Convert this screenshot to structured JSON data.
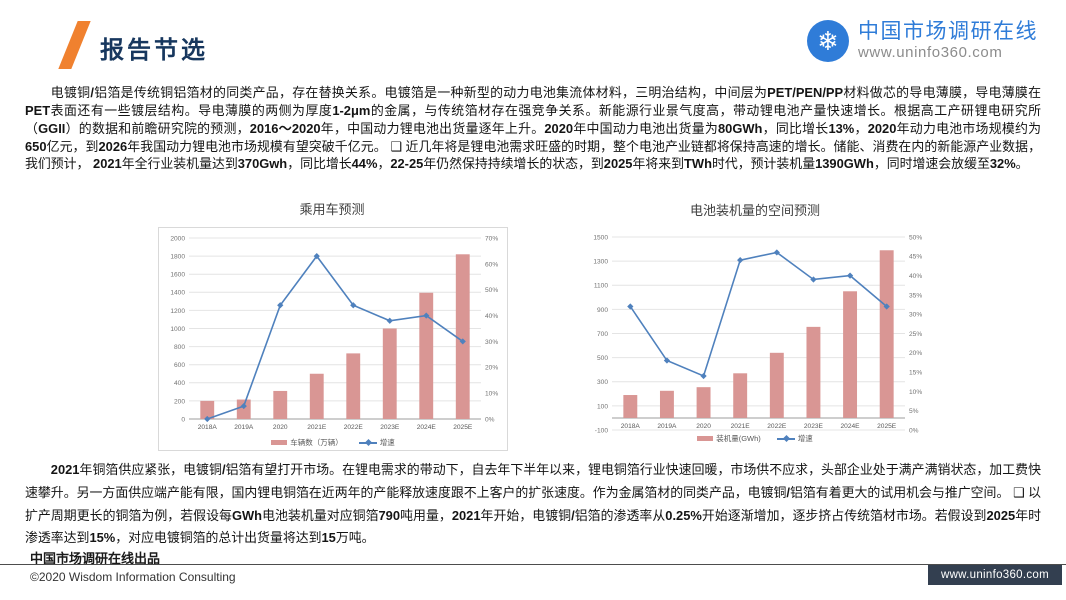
{
  "header": {
    "title": "报告节选",
    "logo": {
      "icon": "snowflake-icon",
      "glyph": "❄",
      "name": "中国市场调研在线",
      "url": "www.uninfo360.com"
    }
  },
  "colors": {
    "accent_orange": "#F0812F",
    "title_navy": "#17375E",
    "brand_blue": "#2F7CD8",
    "bar_pink": "#D99694",
    "line_blue": "#4F81BD",
    "footer_bar": "#333F50"
  },
  "paragraphs": [
    {
      "runs": [
        {
          "t": "电镀铜",
          "b": false
        },
        {
          "t": "/",
          "b": true
        },
        {
          "t": "铝箔是传统铜铝箔材的同类产品，存在替换关系。电镀箔是一种新型的动力电池集流体材料，三明治结构，中间层为",
          "b": false
        },
        {
          "t": "PET/PEN/PP",
          "b": true
        },
        {
          "t": "材料做芯的导电薄膜，导电薄膜在",
          "b": false
        },
        {
          "t": "PET",
          "b": true
        },
        {
          "t": "表面还有一些镀层结构。导电薄膜的两侧为厚度",
          "b": false
        },
        {
          "t": "1-2μm",
          "b": true
        },
        {
          "t": "的金属，与传统箔材存在强竞争关系。新能源行业景气度高，带动锂电池产量快速增长。根据高工产研锂电研究所（",
          "b": false
        },
        {
          "t": "GGII",
          "b": true
        },
        {
          "t": "）的数据和前瞻研究院的预测，",
          "b": false
        },
        {
          "t": "2016～2020",
          "b": true
        },
        {
          "t": "年，中国动力锂电池出货量逐年上升。",
          "b": false
        },
        {
          "t": "2020",
          "b": true
        },
        {
          "t": "年中国动力电池出货量为",
          "b": false
        },
        {
          "t": "80GWh",
          "b": true
        },
        {
          "t": "，同比增长",
          "b": false
        },
        {
          "t": "13%",
          "b": true
        },
        {
          "t": "，",
          "b": false
        },
        {
          "t": "2020",
          "b": true
        },
        {
          "t": "年动力电池市场规模约为",
          "b": false
        },
        {
          "t": "650",
          "b": true
        },
        {
          "t": "亿元，到",
          "b": false
        },
        {
          "t": "2026",
          "b": true
        },
        {
          "t": "年我国动力锂电池市场规模有望突破千亿元。 ❑ 近几年将是锂电池需求旺盛的时期，整个电池产业链都将保持高速的增长。储能、消费在内的新能源产业数据，我们预计， ",
          "b": false
        },
        {
          "t": "2021",
          "b": true
        },
        {
          "t": "年全行业装机量达到",
          "b": false
        },
        {
          "t": "370Gwh",
          "b": true
        },
        {
          "t": "，同比增长",
          "b": false
        },
        {
          "t": "44%",
          "b": true
        },
        {
          "t": "，",
          "b": false
        },
        {
          "t": "22-25",
          "b": true
        },
        {
          "t": "年仍然保持持续增长的状态，到",
          "b": false
        },
        {
          "t": "2025",
          "b": true
        },
        {
          "t": "年将来到",
          "b": false
        },
        {
          "t": "TWh",
          "b": true
        },
        {
          "t": "时代，预计装机量",
          "b": false
        },
        {
          "t": "1390GWh",
          "b": true
        },
        {
          "t": "，同时增速会放缓至",
          "b": false
        },
        {
          "t": "32%",
          "b": true
        },
        {
          "t": "。",
          "b": false
        }
      ]
    },
    {
      "runs": [
        {
          "t": "2021",
          "b": true
        },
        {
          "t": "年铜箔供应紧张，电镀铜",
          "b": false
        },
        {
          "t": "/",
          "b": true
        },
        {
          "t": "铝箔有望打开市场。在锂电需求的带动下，自去年下半年以来，锂电铜箔行业快速回暖，市场供不应求，头部企业处于满产满销状态，加工费快速攀升。另一方面供应端产能有限，国内锂电铜箔在近两年的产能释放速度跟不上客户的扩张速度。作为金属箔材的同类产品，电镀铜",
          "b": false
        },
        {
          "t": "/",
          "b": true
        },
        {
          "t": "铝箔有着更大的试用机会与推广空间。 ❑ 以扩产周期更长的铜箔为例，若假设每",
          "b": false
        },
        {
          "t": "GWh",
          "b": true
        },
        {
          "t": "电池装机量对应铜箔",
          "b": false
        },
        {
          "t": "790",
          "b": true
        },
        {
          "t": "吨用量，",
          "b": false
        },
        {
          "t": "2021",
          "b": true
        },
        {
          "t": "年开始，电镀铜",
          "b": false
        },
        {
          "t": "/",
          "b": true
        },
        {
          "t": "铝箔的渗透率从",
          "b": false
        },
        {
          "t": "0.25%",
          "b": true
        },
        {
          "t": "开始逐渐增加，逐步挤占传统箔材市场。若假设到",
          "b": false
        },
        {
          "t": "2025",
          "b": true
        },
        {
          "t": "年时渗透率达到",
          "b": false
        },
        {
          "t": "15%",
          "b": true
        },
        {
          "t": "，对应电镀铜箔的总计出货量将达到",
          "b": false
        },
        {
          "t": "15",
          "b": true
        },
        {
          "t": "万吨。",
          "b": false
        }
      ]
    }
  ],
  "chart_data": [
    {
      "type": "bar+line",
      "title": "乘用车预测",
      "categories": [
        "2018A",
        "2019A",
        "2020",
        "2021E",
        "2022E",
        "2023E",
        "2024E",
        "2025E"
      ],
      "series": [
        {
          "name": "车辆数（万辆）",
          "type": "bar",
          "axis": "left",
          "color": "#D99694",
          "values": [
            200,
            215,
            310,
            500,
            725,
            1000,
            1395,
            1820
          ]
        },
        {
          "name": "增速",
          "type": "line",
          "axis": "right",
          "color": "#4F81BD",
          "unit": "%",
          "values": [
            0,
            5,
            44,
            63,
            44,
            38,
            40,
            30
          ]
        }
      ],
      "left_axis": {
        "min": 0,
        "max": 2000,
        "step": 200
      },
      "right_axis": {
        "min": 0,
        "max": 70,
        "step": 10,
        "suffix": "%"
      },
      "grid": true,
      "legend_position": "bottom"
    },
    {
      "type": "bar+line",
      "title": "电池装机量的空间预测",
      "categories": [
        "2018A",
        "2019A",
        "2020",
        "2021E",
        "2022E",
        "2023E",
        "2024E",
        "2025E"
      ],
      "series": [
        {
          "name": "装机量(GWh)",
          "type": "bar",
          "axis": "left",
          "color": "#D99694",
          "values": [
            190,
            225,
            255,
            370,
            540,
            755,
            1050,
            1390
          ]
        },
        {
          "name": "增速",
          "type": "line",
          "axis": "right",
          "color": "#4F81BD",
          "unit": "%",
          "values": [
            32,
            18,
            14,
            44,
            46,
            39,
            40,
            32
          ]
        }
      ],
      "left_axis": {
        "min": -100,
        "max": 1500,
        "step": 200
      },
      "right_axis": {
        "min": 0,
        "max": 50,
        "step": 5,
        "suffix": "%"
      },
      "grid": true,
      "legend_position": "bottom"
    }
  ],
  "footer": {
    "producer": "中国市场调研在线出品",
    "copyright": "©2020 Wisdom Information Consulting",
    "site": "www.uninfo360.com"
  }
}
